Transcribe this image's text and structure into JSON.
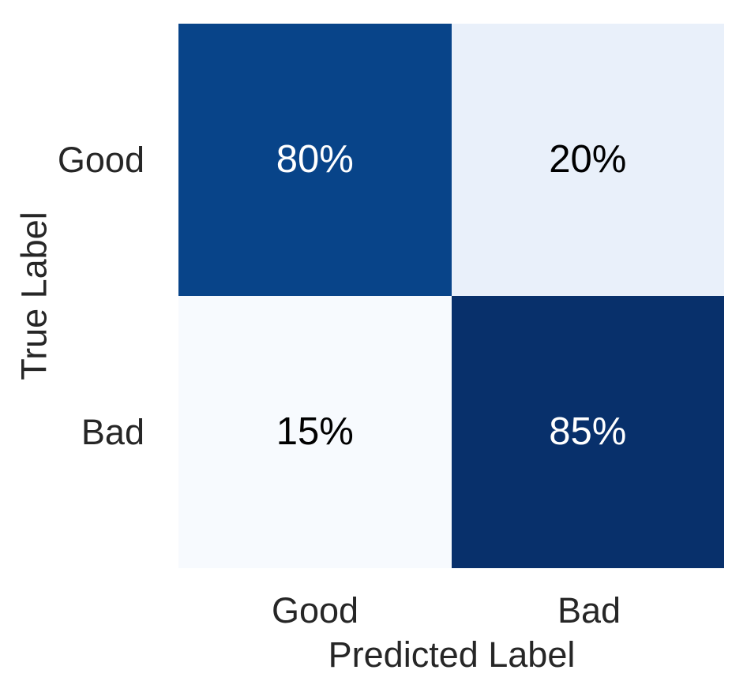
{
  "chart_data": {
    "type": "heatmap",
    "title": "",
    "xlabel": "Predicted Label",
    "ylabel": "True Label",
    "x_categories": [
      "Good",
      "Bad"
    ],
    "y_categories": [
      "Good",
      "Bad"
    ],
    "values": [
      [
        80,
        20
      ],
      [
        15,
        85
      ]
    ],
    "unit": "%",
    "colormap": "Blues",
    "legend_position": "none",
    "grid": false,
    "cells": [
      {
        "true_label": "Good",
        "predicted_label": "Good",
        "value": 80,
        "label": "80%",
        "bg": "#084489",
        "fg": "#ffffff"
      },
      {
        "true_label": "Good",
        "predicted_label": "Bad",
        "value": 20,
        "label": "20%",
        "bg": "#e9f0fa",
        "fg": "#000000"
      },
      {
        "true_label": "Bad",
        "predicted_label": "Good",
        "value": 15,
        "label": "15%",
        "bg": "#f7fafe",
        "fg": "#000000"
      },
      {
        "true_label": "Bad",
        "predicted_label": "Bad",
        "value": 85,
        "label": "85%",
        "bg": "#08306b",
        "fg": "#ffffff"
      }
    ]
  },
  "axes": {
    "x_label": "Predicted Label",
    "y_label": "True Label",
    "x_ticks": [
      "Good",
      "Bad"
    ],
    "y_ticks": [
      "Good",
      "Bad"
    ],
    "text_color": "#262626"
  }
}
